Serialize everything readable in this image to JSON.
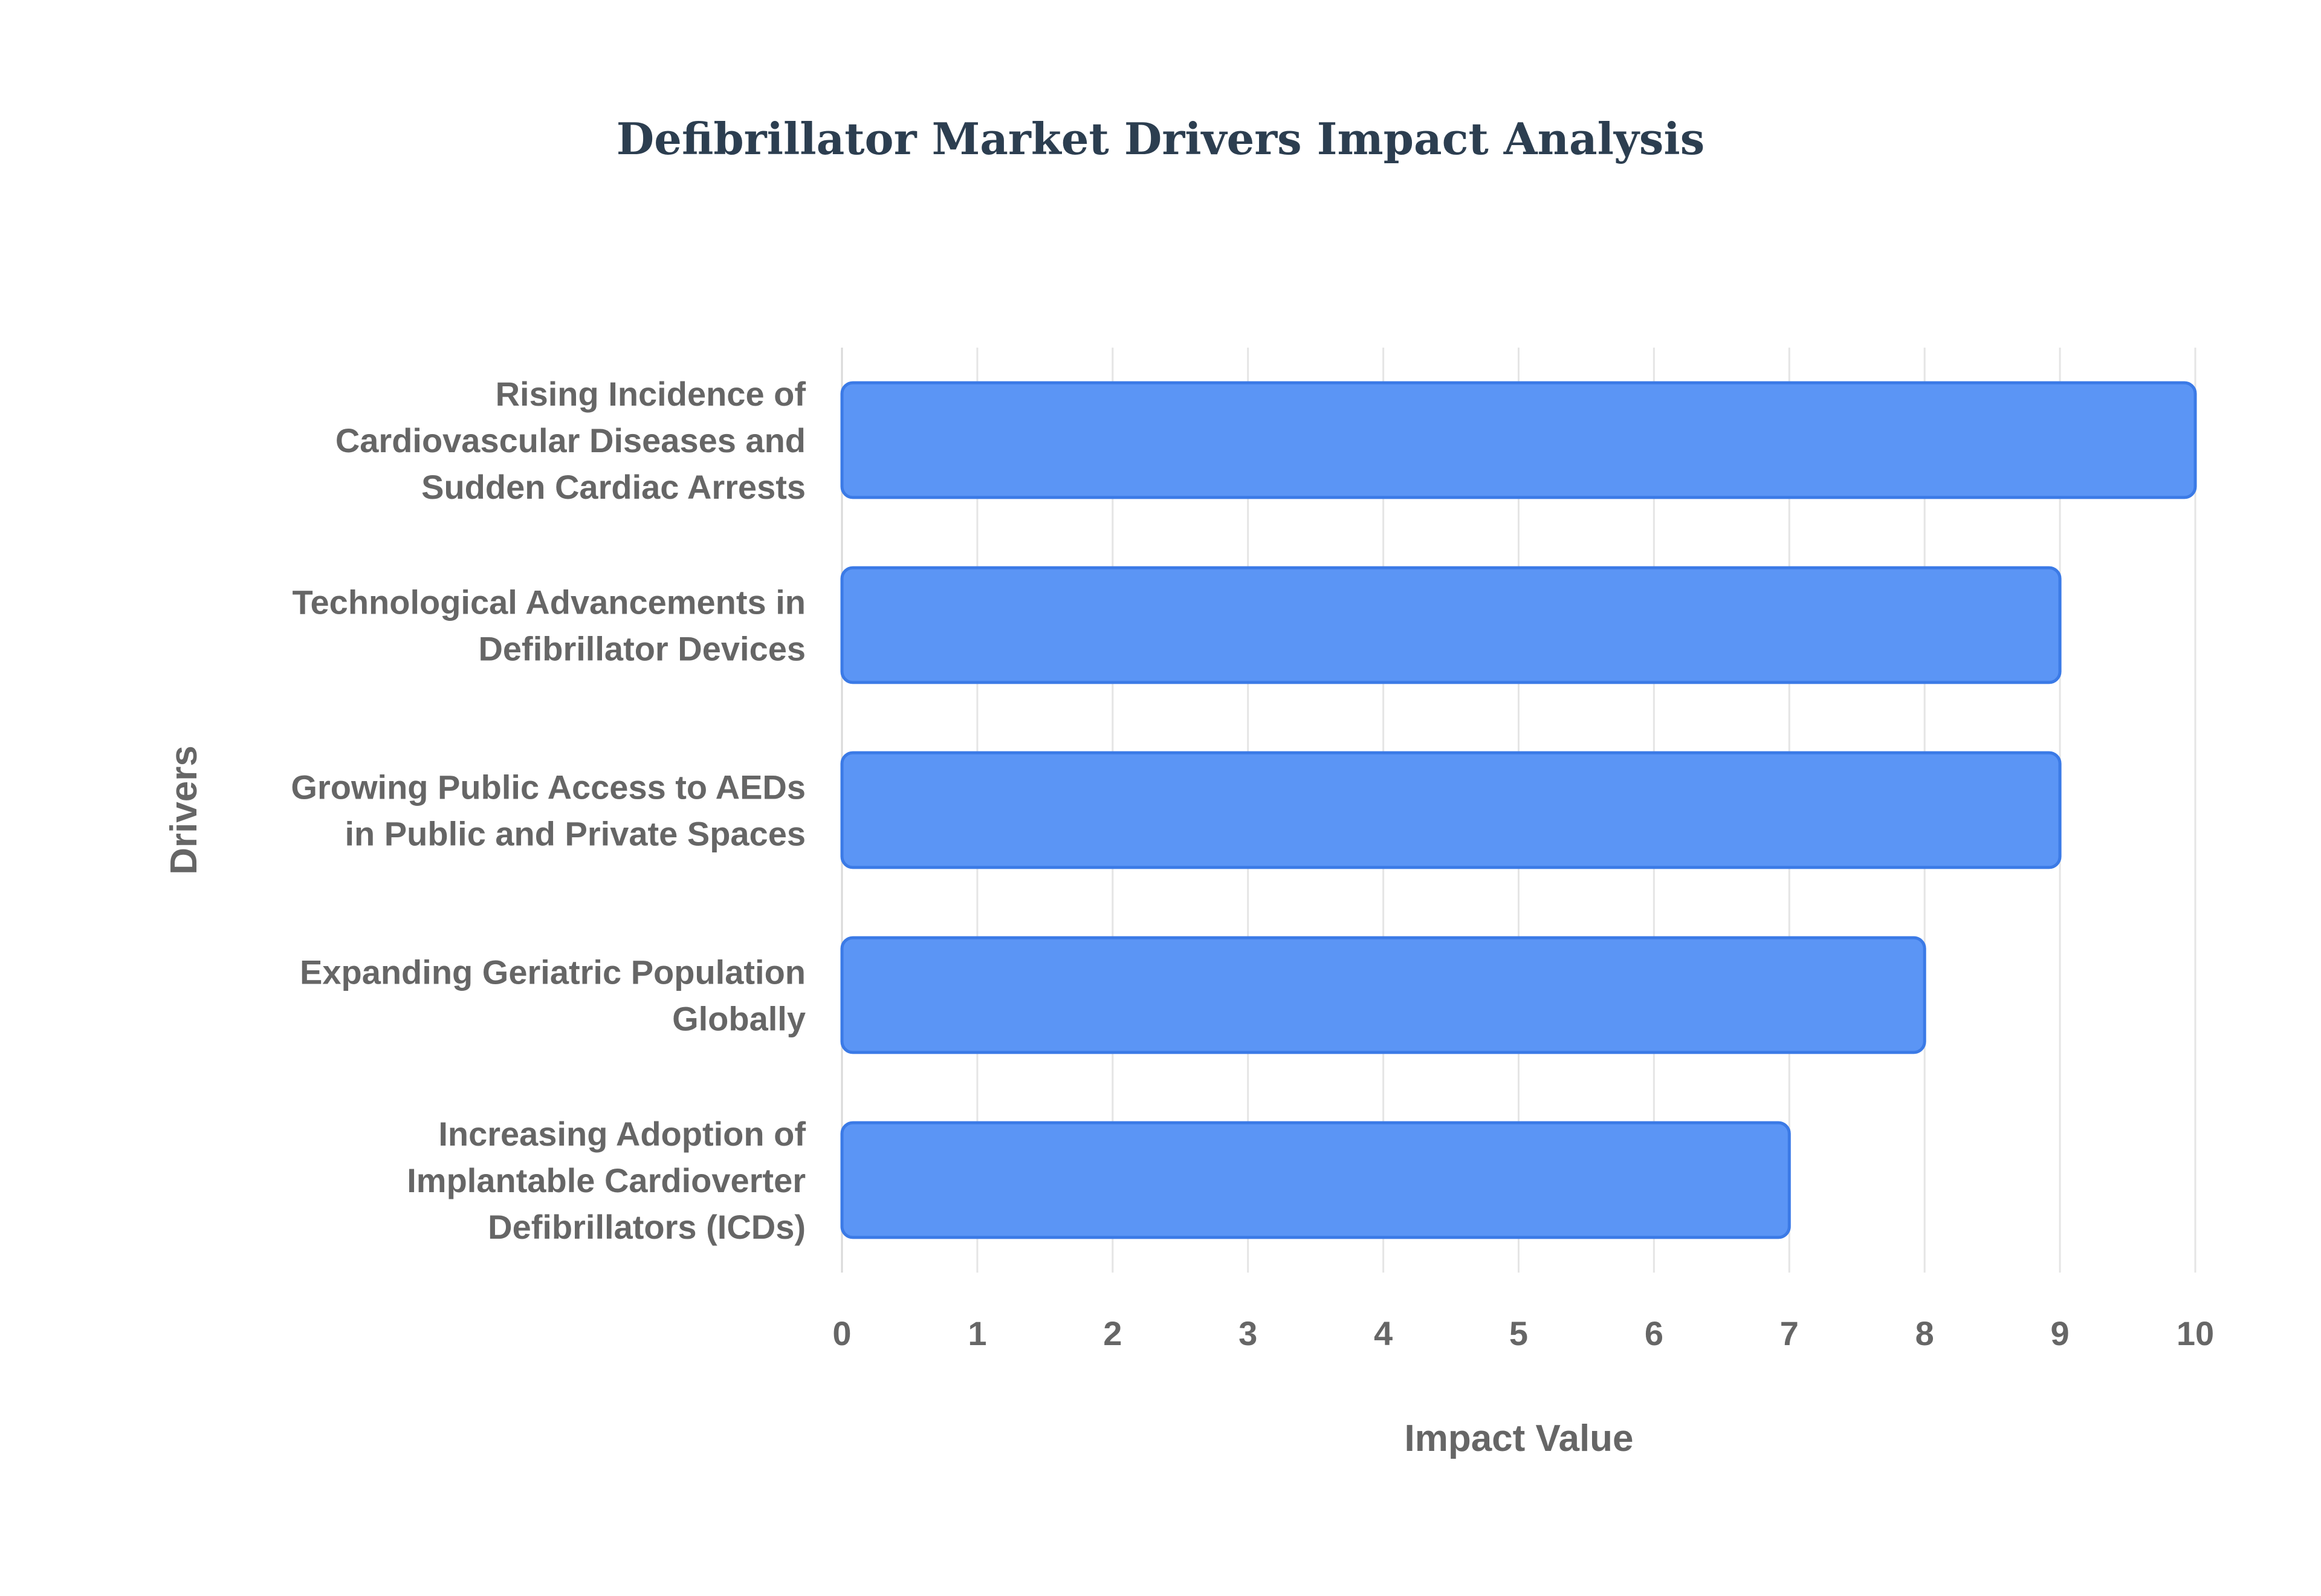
{
  "chart_data": {
    "type": "bar",
    "orientation": "horizontal",
    "title": "Defibrillator Market Drivers Impact Analysis",
    "xlabel": "Impact Value",
    "ylabel": "Drivers",
    "xlim": [
      0,
      10
    ],
    "xticks": [
      "0",
      "1",
      "2",
      "3",
      "4",
      "5",
      "6",
      "7",
      "8",
      "9",
      "10"
    ],
    "grid": true,
    "legend": "none",
    "bar_color": "#5b95f5",
    "bar_border_color": "#3b7ae6",
    "categories": [
      [
        "Rising Incidence of",
        "Cardiovascular Diseases and",
        "Sudden Cardiac Arrests"
      ],
      [
        "Technological Advancements in",
        "Defibrillator Devices"
      ],
      [
        "Growing Public Access to AEDs",
        "in Public and Private Spaces"
      ],
      [
        "Expanding Geriatric Population",
        "Globally"
      ],
      [
        "Increasing Adoption of",
        "Implantable Cardioverter",
        "Defibrillators (ICDs)"
      ]
    ],
    "values": [
      10,
      9,
      9,
      8,
      7
    ]
  }
}
